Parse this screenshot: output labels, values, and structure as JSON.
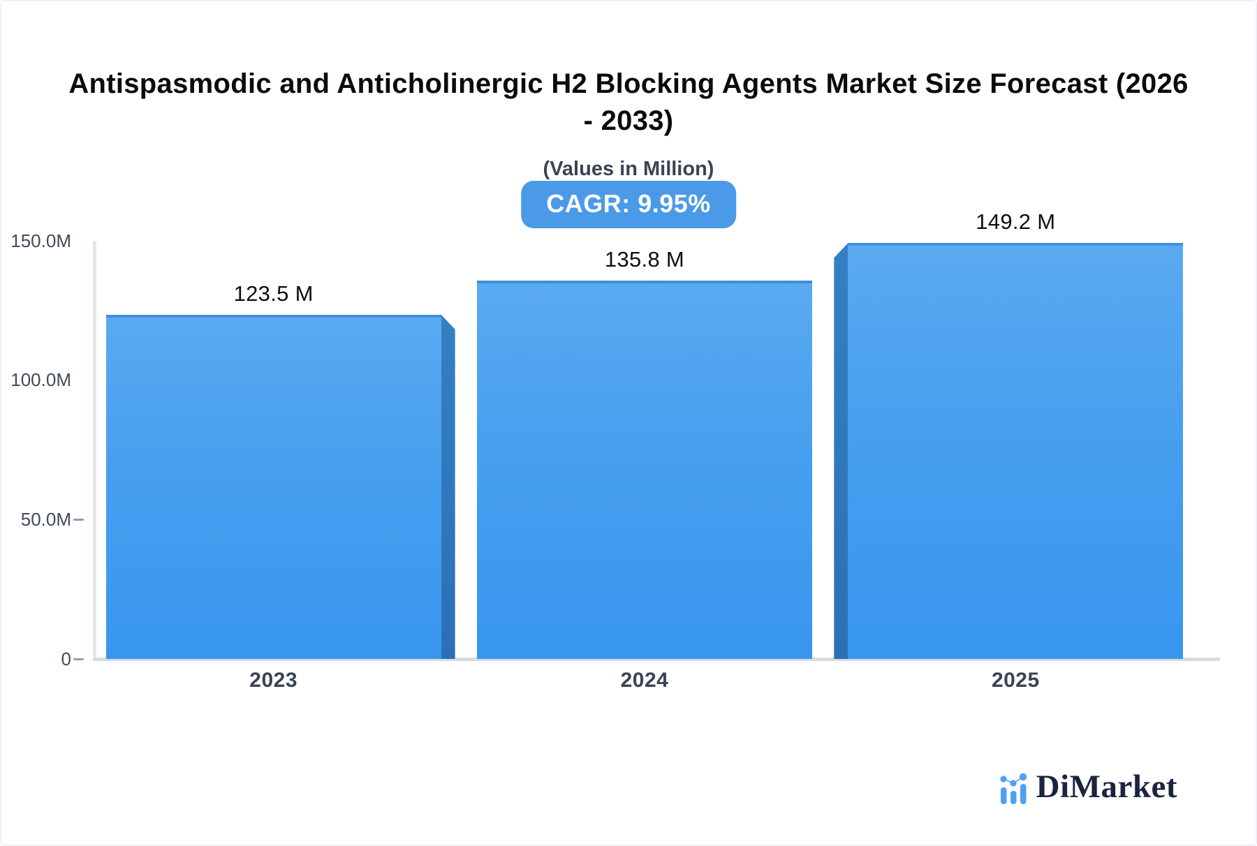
{
  "header": {
    "title_line1": "Antispasmodic and Anticholinergic H2 Blocking Agents Market Size Forecast (2026",
    "title_line2": "- 2033)",
    "subtitle": "(Values in Million)"
  },
  "badge": {
    "text": "CAGR: 9.95%",
    "bg_color": "#4a9ae8",
    "text_color": "#ffffff"
  },
  "chart_data": {
    "type": "bar",
    "title": "Antispasmodic and Anticholinergic H2 Blocking Agents Market Size Forecast (2026 - 2033)",
    "subtitle": "(Values in Million)",
    "categories": [
      "2023",
      "2024",
      "2025"
    ],
    "values": [
      123.5,
      135.8,
      149.2
    ],
    "value_labels": [
      "123.5 M",
      "135.8 M",
      "149.2 M"
    ],
    "ylim": [
      0,
      150
    ],
    "yticks": [
      {
        "label": "150.0M",
        "value": 150,
        "dash": false
      },
      {
        "label": "100.0M",
        "value": 100,
        "dash": false
      },
      {
        "label": "50.0M",
        "value": 50,
        "dash": true
      },
      {
        "label": "0",
        "value": 0,
        "dash": true
      }
    ],
    "grid": false,
    "legend": "none",
    "bar_color_top": "#59aaf0",
    "bar_color_bottom": "#3896ee",
    "bar_edge_color": "#418edf",
    "bevel_color": "#2d74ba",
    "bevels": [
      "right",
      "none",
      "left"
    ]
  },
  "logo": {
    "icon": "bar-chart-icon",
    "text": "DiMarket",
    "icon_color": "#4da1f4",
    "text_color": "#1a2440"
  }
}
